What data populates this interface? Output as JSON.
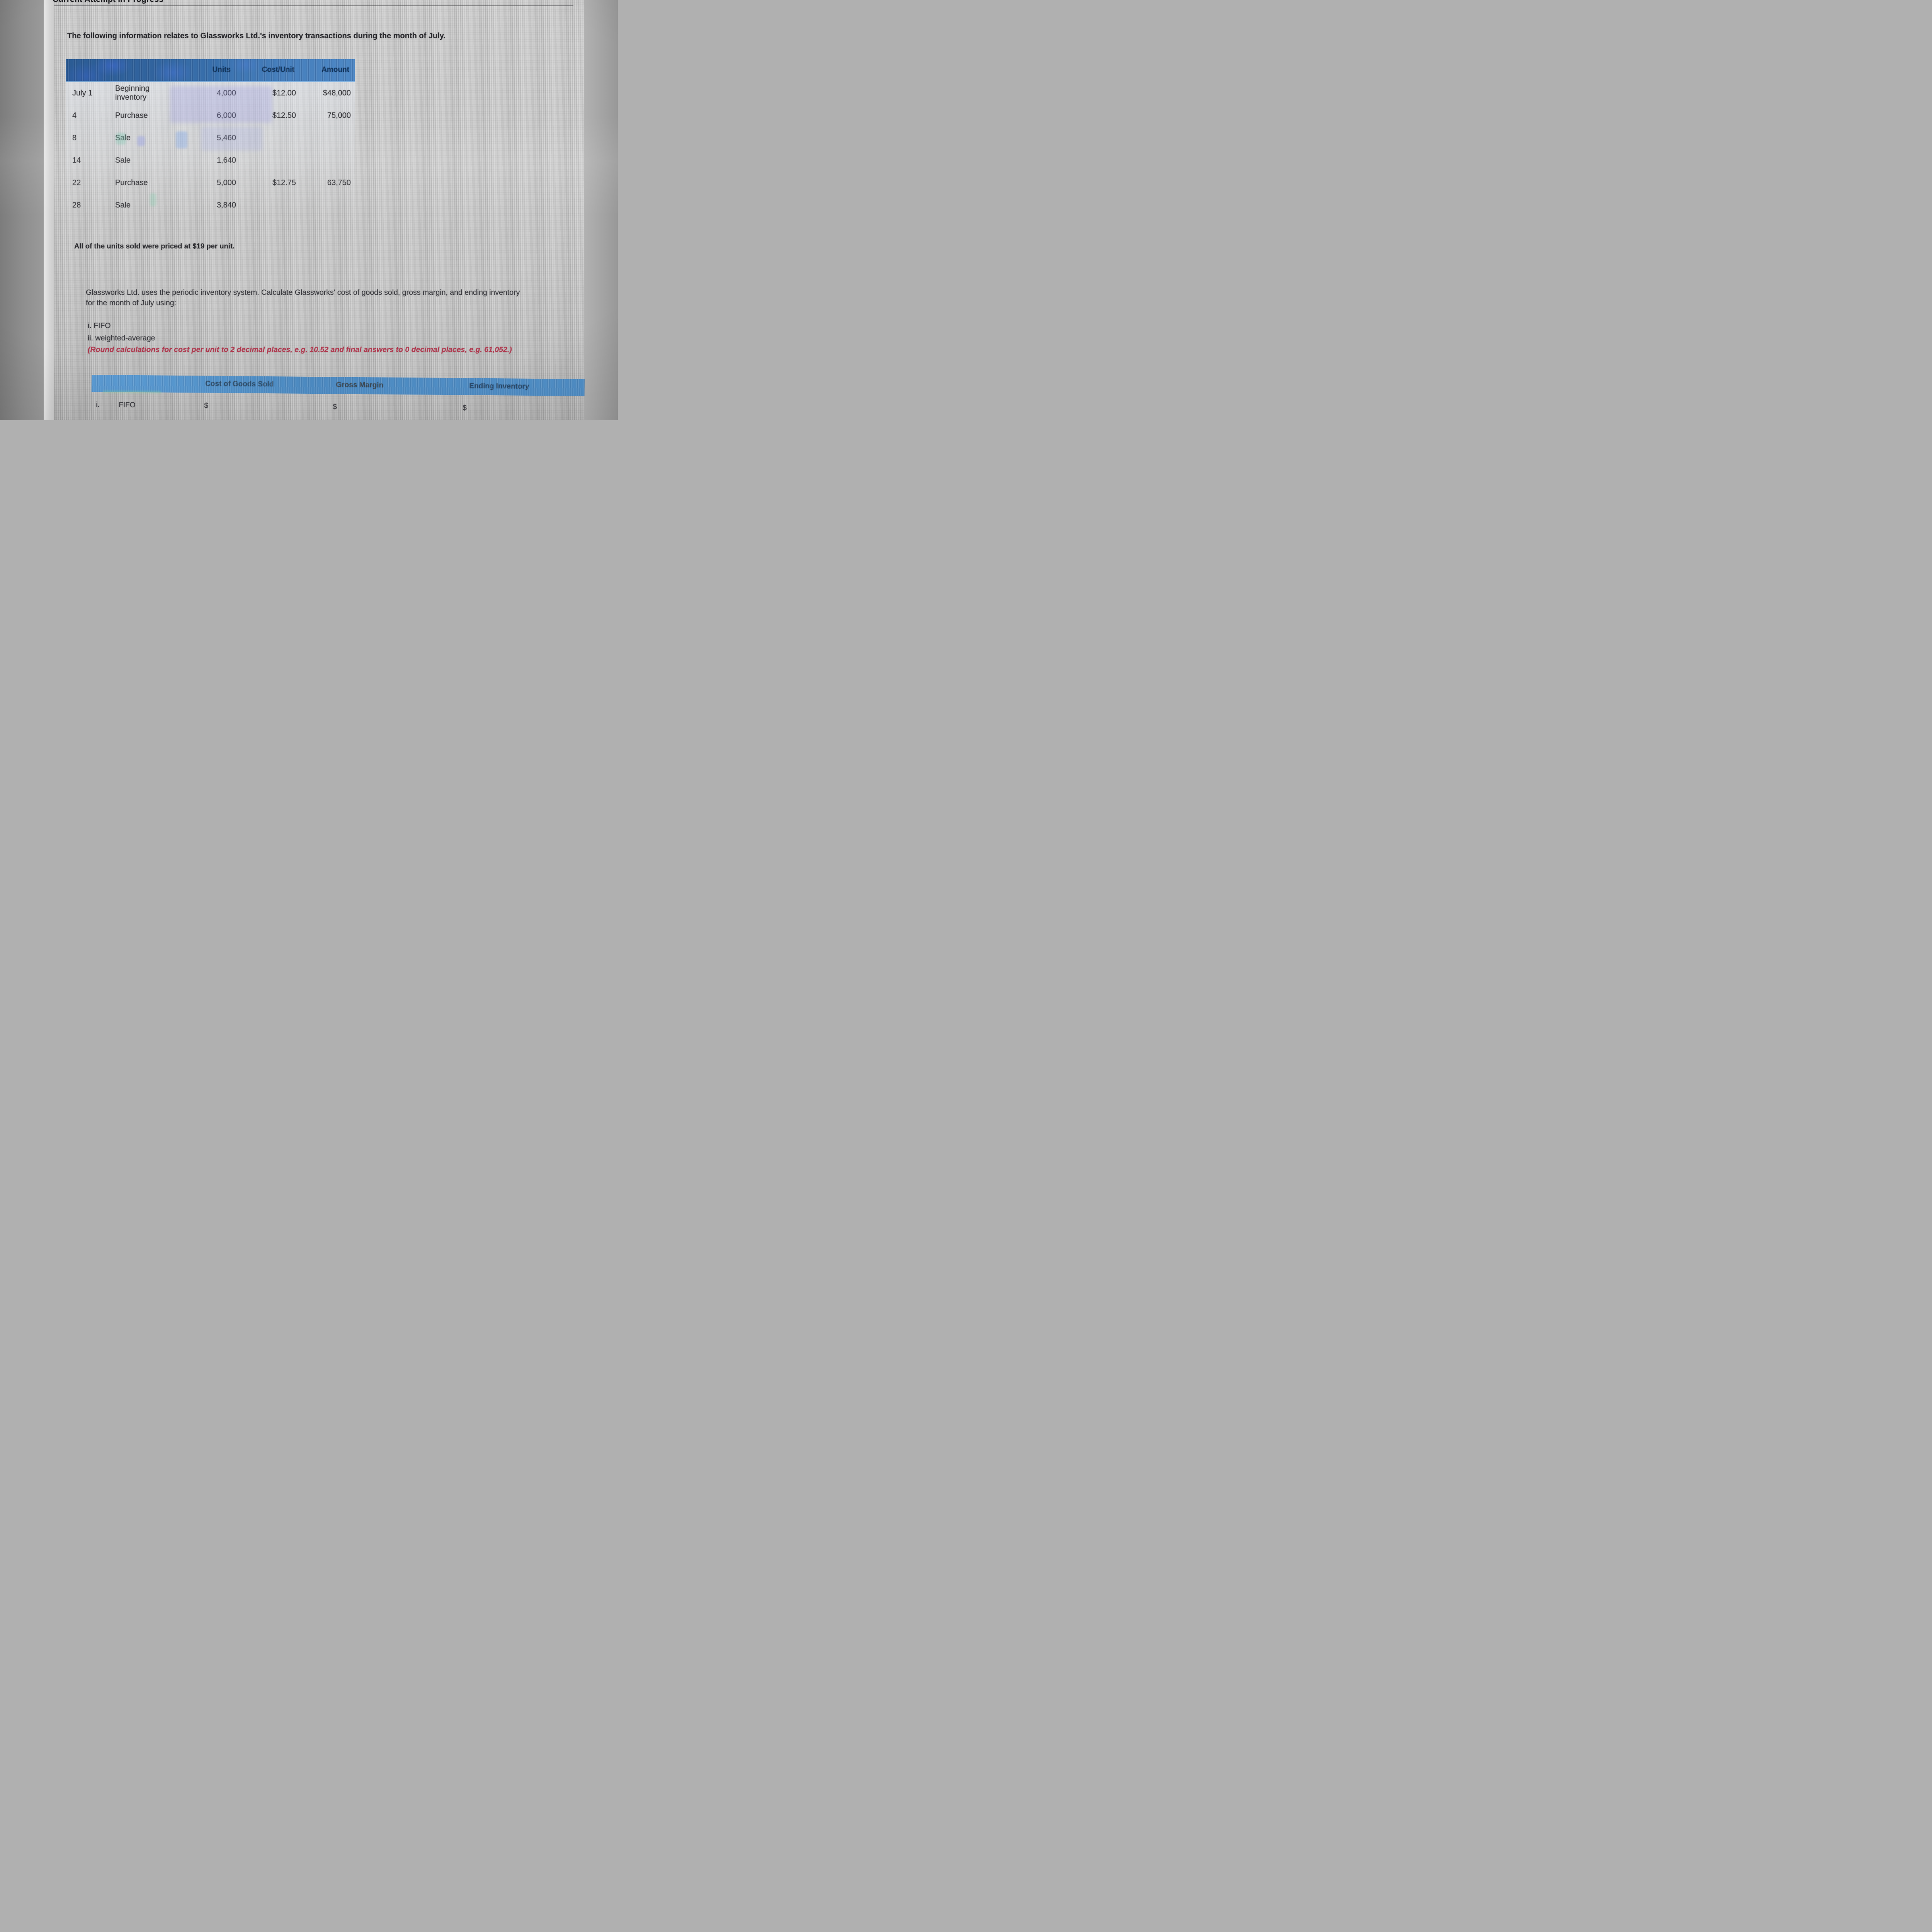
{
  "header": {
    "current_attempt_label": "Current Attempt in Progress"
  },
  "intro_text": "The following information relates to Glassworks Ltd.'s inventory transactions during the month of July.",
  "inventory_table": {
    "headers": {
      "units": "Units",
      "cost_per_unit": "Cost/Unit",
      "amount": "Amount"
    },
    "rows": [
      {
        "date": "July 1",
        "description": "Beginning inventory",
        "units": "4,000",
        "cost_per_unit": "$12.00",
        "amount": "$48,000"
      },
      {
        "date": "4",
        "description": "Purchase",
        "units": "6,000",
        "cost_per_unit": "$12.50",
        "amount": "75,000"
      },
      {
        "date": "8",
        "description": "Sale",
        "units": "5,460",
        "cost_per_unit": "",
        "amount": ""
      },
      {
        "date": "14",
        "description": "Sale",
        "units": "1,640",
        "cost_per_unit": "",
        "amount": ""
      },
      {
        "date": "22",
        "description": "Purchase",
        "units": "5,000",
        "cost_per_unit": "$12.75",
        "amount": "63,750"
      },
      {
        "date": "28",
        "description": "Sale",
        "units": "3,840",
        "cost_per_unit": "",
        "amount": ""
      }
    ]
  },
  "sale_price_note": "All of the units sold were priced at $19 per unit.",
  "instructions": {
    "line1": "Glassworks Ltd. uses the periodic inventory system. Calculate Glassworks' cost of goods sold, gross margin, and ending inventory",
    "line2": "for the month of July using:",
    "item_i": "i. FIFO",
    "item_ii": "ii. weighted-average",
    "rounding_note": "(Round calculations for cost per unit to 2 decimal places, e.g. 10.52 and final answers to 0 decimal places, e.g. 61,052.)"
  },
  "answer_table": {
    "headers": [
      "Cost of Goods Sold",
      "Gross Margin",
      "Ending Inventory"
    ],
    "rows": [
      {
        "index": "i.",
        "method": "FIFO",
        "cogs_prefix": "$",
        "gross_margin_prefix": "$",
        "ending_inventory_prefix": "$"
      }
    ]
  },
  "colors": {
    "inventory_header_blue": "#3a71ad",
    "answer_header_blue": "#5190c8",
    "header_text_navy": "#12365e",
    "body_text": "#2f2f33",
    "rounding_note_red": "#b0394f"
  }
}
